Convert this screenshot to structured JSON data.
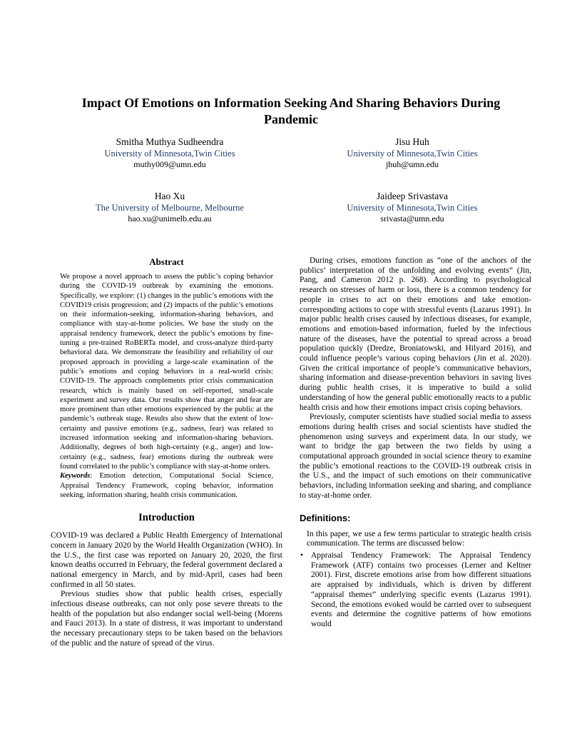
{
  "paper": {
    "title_line1": "Impact Of Emotions on Information Seeking And Sharing Behaviors During",
    "title_line2": "Pandemic",
    "authors": [
      {
        "name": "Smitha Muthya Sudheendra",
        "affiliation": "University of Minnesota,Twin Cities",
        "email": "muthy009@umn.edu"
      },
      {
        "name": "Jisu Huh",
        "affiliation": "University of Minnesota,Twin Cities",
        "email": "jhuh@umn.edu"
      },
      {
        "name": "Hao Xu",
        "affiliation": "The University of Melbourne, Melbourne",
        "email": "hao.xu@unimelb.edu.au"
      },
      {
        "name": "Jaideep Srivastava",
        "affiliation": "University of Minnesota,Twin Cities",
        "email": "srivasta@umn.edu"
      }
    ],
    "abstract": {
      "heading": "Abstract",
      "body": "We propose a novel approach to assess the public’s coping behavior during the COVID-19 outbreak by examining the emotions. Specifically, we explore: (1) changes in the public’s emotions with the COVID19 crisis progression; and (2) impacts of the public’s emotions on their information-seeking, information-sharing behaviors, and compliance with stay-at-home policies. We base the study on the appraisal tendency framework, detect the public’s emotions by fine-tuning a pre-trained RoBERTa model, and cross-analyze third-party behavioral data. We demonstrate the feasibility and reliability of our proposed approach in providing a large-scale examination of the public’s emotions and coping behaviors in a real-world crisis: COVID-19. The approach complements prior crisis communication research, which is mainly based on self-reported, small-scale experiment and survey data. Our results show that anger and fear are more prominent than other emotions experienced by the public at the pandemic’s outbreak stage. Results also show that the extent of low-certainty and passive emotions (e.g., sadness, fear) was related to increased information seeking and information-sharing behaviors. Additionally, degrees of both high-certainty (e.g., anger) and low-certainty (e.g., sadness, fear) emotions during the outbreak were found correlated to the public’s compliance with stay-at-home orders.",
      "keywords_label": "Keywords",
      "keywords_rest": ": Emotion detection, Computational Social Science, Appraisal Tendency Framework, coping behavior, information seeking, information sharing, health crisis communication."
    },
    "introduction": {
      "heading": "Introduction",
      "para1": "COVID-19 was declared a Public Health Emergency of International concern in January 2020 by the World Health Organization (WHO). In the U.S., the first case was reported on January 20, 2020, the first known deaths occurred in February, the federal government declared a national emergency in March, and by mid-April, cases had been confirmed in all 50 states.",
      "para2": "Previous studies show that public health crises, especially infectious disease outbreaks, can not only pose severe threats to the health of the population but also endanger social well-being (Morens and Fauci 2013). In a state of distress, it was important to understand the necessary precautionary steps to be taken based on the behaviors of the public and the nature of spread of the virus."
    },
    "right_column": {
      "para1": "During crises, emotions function as “one of the anchors of the publics’ interpretation of the unfolding and evolving events” (Jin, Pang, and Cameron 2012 p. 268). According to psychological research on stresses of harm or loss, there is a common tendency for people in crises to act on their emotions and take emotion-corresponding actions to cope with stressful events (Lazarus 1991). In major public health crises caused by infectious diseases, for example, emotions and emotion-based information, fueled by the infectious nature of the diseases, have the potential to spread across a broad population quickly (Dredze, Broniatowski, and Hilyard 2016), and could influence people’s various coping behaviors (Jin et al. 2020). Given the critical importance of people’s communicative behaviors, sharing information and disease-prevention behaviors in saving lives during public health crises, it is imperative to build a solid understanding of how the general public emotionally reacts to a public health crisis and how their emotions impact crisis coping behaviors.",
      "para2": "Previously, computer scientists have studied social media to assess emotions during health crises and social scientists have studied the phenomenon using surveys and experiment data. In our study, we want to bridge the gap between the two fields by using a computational approach grounded in social science theory to examine the public’s emotional reactions to the COVID-19 outbreak crisis in the U.S., and the impact of such emotions on their communicative behaviors, including information seeking and sharing, and compliance to stay-at-home order.",
      "definitions_heading": "Definitions:",
      "definitions_intro": "In this paper, we use a few terms particular to strategic health crisis communication. The terms are discussed below:",
      "bullet_glyph": "•",
      "bullet1": "Appraisal Tendency Framework: The Appraisal Tendency Framework (ATF) contains two processes (Lerner and Keltner 2001). First, discrete emotions arise from how different situations are appraised by individuals, which is driven by different “appraisal themes” underlying specific events (Lazarus 1991). Second, the emotions evoked would be carried over to subsequent events and determine the cognitive patterns of how emotions would"
    },
    "colors": {
      "affiliation_blue": "#1f3a70"
    }
  }
}
